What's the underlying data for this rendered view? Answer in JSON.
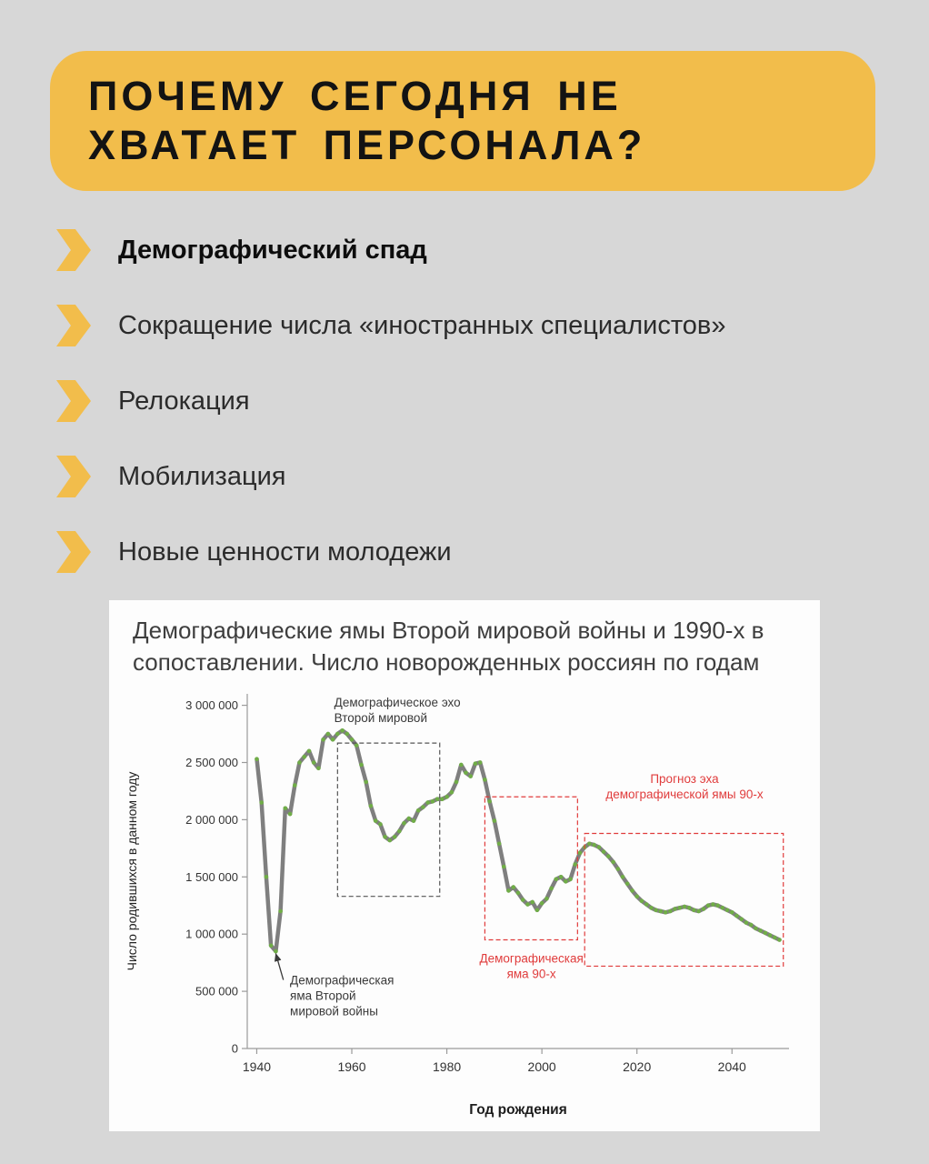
{
  "header": {
    "title": "Почему сегодня не хватает персонала?"
  },
  "bullets": {
    "items": [
      {
        "label": "Демографический спад",
        "bold": true
      },
      {
        "label": "Сокращение числа «иностранных специалистов»",
        "bold": false
      },
      {
        "label": "Релокация",
        "bold": false
      },
      {
        "label": "Мобилизация",
        "bold": false
      },
      {
        "label": "Новые ценности молодежи",
        "bold": false
      }
    ]
  },
  "colors": {
    "background": "#d7d7d7",
    "accent_yellow": "#f2bd4b",
    "card": "#fdfdfd",
    "line_gray": "#7f7f7f",
    "marker_green": "#70ad47",
    "annotation_red": "#e03c3c",
    "annotation_black": "#3a3a3a",
    "axis_gray": "#9a9a9a",
    "text_dark": "#1a1a1a"
  },
  "chart_data": {
    "type": "line",
    "title": "Демографические ямы Второй мировой войны и 1990-х в сопоставлении. Число новорожденных россиян по годам",
    "xlabel": "Год рождения",
    "ylabel": "Число родившихся в данном году",
    "xlim": [
      1938,
      2052
    ],
    "ylim": [
      0,
      3100000
    ],
    "x_ticks": [
      1940,
      1960,
      1980,
      2000,
      2020,
      2040
    ],
    "y_ticks": [
      0,
      500000,
      1000000,
      1500000,
      2000000,
      2500000,
      3000000
    ],
    "y_tick_labels": [
      "0",
      "500 000",
      "1 000 000",
      "1 500 000",
      "2 000 000",
      "2 500 000",
      "3 000 000"
    ],
    "grid": false,
    "legend": false,
    "line_color": "#7f7f7f",
    "marker_color": "#70ad47",
    "y_scale": 1000,
    "series": [
      {
        "name": "Число родившихся в данном году",
        "x_range": [
          1940,
          2050,
          1
        ],
        "y": [
          2530,
          2150,
          1500,
          900,
          850,
          1200,
          2100,
          2050,
          2300,
          2500,
          2550,
          2600,
          2500,
          2450,
          2700,
          2750,
          2700,
          2750,
          2780,
          2750,
          2700,
          2650,
          2480,
          2330,
          2120,
          1990,
          1960,
          1850,
          1820,
          1850,
          1900,
          1970,
          2010,
          1990,
          2080,
          2110,
          2150,
          2160,
          2180,
          2180,
          2200,
          2240,
          2330,
          2480,
          2410,
          2380,
          2490,
          2500,
          2350,
          2160,
          1990,
          1790,
          1590,
          1380,
          1410,
          1360,
          1300,
          1260,
          1280,
          1210,
          1270,
          1310,
          1400,
          1480,
          1500,
          1460,
          1480,
          1610,
          1710,
          1760,
          1790,
          1780,
          1760,
          1720,
          1680,
          1630,
          1570,
          1500,
          1440,
          1380,
          1330,
          1290,
          1260,
          1230,
          1210,
          1200,
          1190,
          1200,
          1220,
          1230,
          1240,
          1230,
          1210,
          1200,
          1220,
          1250,
          1260,
          1250,
          1230,
          1210,
          1190,
          1160,
          1130,
          1100,
          1080,
          1050,
          1030,
          1010,
          990,
          970,
          950
        ]
      }
    ],
    "boxes": [
      {
        "id": "echo-box",
        "x0": 1957,
        "x1": 1978.5,
        "y0": 1330000,
        "y1": 2670000,
        "color": "#555555"
      },
      {
        "id": "pit90s-box",
        "x0": 1988,
        "x1": 2007.5,
        "y0": 950000,
        "y1": 2200000,
        "color": "#e03c3c"
      },
      {
        "id": "forecast-box",
        "x0": 2009,
        "x1": 2050.8,
        "y0": 720000,
        "y1": 1880000,
        "color": "#e03c3c"
      }
    ],
    "annotations": [
      {
        "id": "echo-label",
        "lines": [
          "Демографическое эхо",
          "Второй мировой"
        ],
        "x": 1956.3,
        "y": 2990000,
        "color": "#3a3a3a",
        "anchor": "start"
      },
      {
        "id": "ww2-pit-label",
        "lines": [
          "Демографическая",
          "яма Второй",
          "мировой войны"
        ],
        "x": 1947,
        "y": 560000,
        "color": "#3a3a3a",
        "anchor": "start",
        "arrow": {
          "from_x": 1945.6,
          "from_y": 600000,
          "to_x": 1944.0,
          "to_y": 830000
        }
      },
      {
        "id": "pit90s-label",
        "lines": [
          "Демографическая",
          "яма 90-х"
        ],
        "x": 1997.8,
        "y": 750000,
        "color": "#e03c3c",
        "anchor": "middle"
      },
      {
        "id": "forecast-label",
        "lines": [
          "Прогноз эха",
          "демографической ямы 90-х"
        ],
        "x": 2030,
        "y": 2320000,
        "color": "#e03c3c",
        "anchor": "middle"
      }
    ]
  }
}
